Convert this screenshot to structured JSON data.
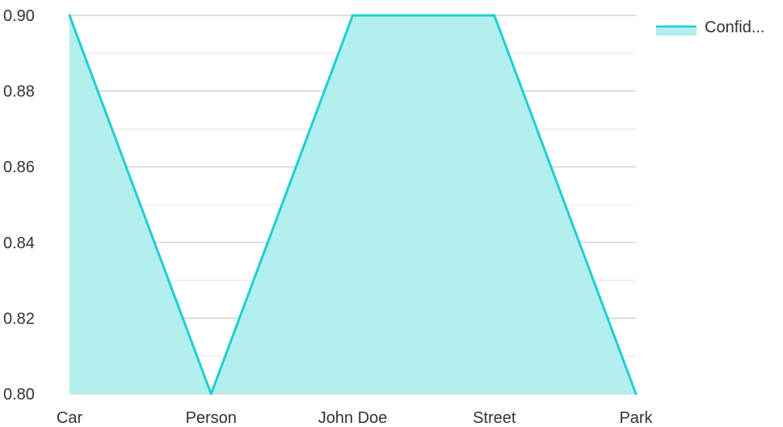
{
  "chart_data": {
    "type": "area",
    "categories": [
      "Car",
      "Person",
      "John Doe",
      "Street",
      "Park"
    ],
    "series": [
      {
        "name": "Confid...",
        "values": [
          0.9,
          0.8,
          0.9,
          0.9,
          0.8
        ]
      }
    ],
    "ylim": [
      0.8,
      0.9
    ],
    "yticks": [
      "0.90",
      "0.88",
      "0.86",
      "0.84",
      "0.82",
      "0.80"
    ],
    "grid": true,
    "legend": {
      "position": "top-right",
      "label": "Confid..."
    },
    "colors": {
      "line": "#1ecfcf",
      "fill": "#b3eeee",
      "grid_major": "#bfbfbf",
      "grid_minor": "#e6e6e6"
    }
  }
}
